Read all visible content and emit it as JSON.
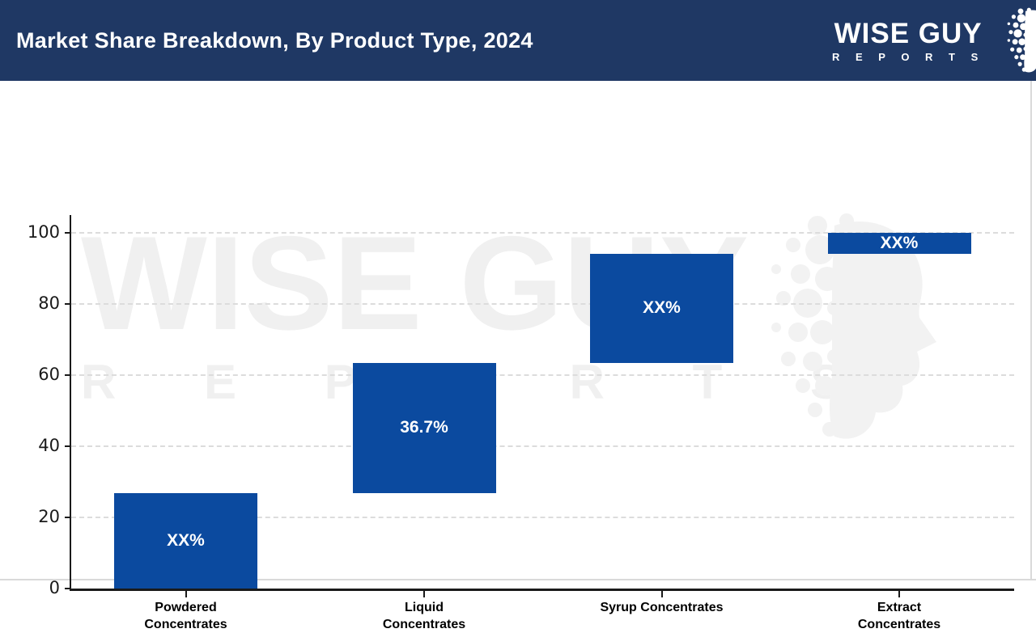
{
  "header": {
    "title": "Market Share Breakdown, By Product Type, 2024",
    "background_color": "#1f3864",
    "brand": {
      "name": "WISE GUY",
      "sub": "R E P O R T S",
      "head_icon": "wise-guy-head-logo"
    }
  },
  "watermark": {
    "line1": "WISE GUY",
    "line2": "R E P O R T S",
    "color": "#f0f0f0"
  },
  "chart_data": {
    "type": "bar",
    "subtype": "floating-waterfall",
    "title": "Market Share Breakdown, By Product Type, 2024",
    "categories": [
      "Powdered Concentrates",
      "Liquid Concentrates",
      "Syrup Concentrates",
      "Extract Concentrates"
    ],
    "category_label_lines": [
      [
        "Powdered",
        "Concentrates"
      ],
      [
        "Liquid",
        "Concentrates"
      ],
      [
        "Syrup Concentrates"
      ],
      [
        "Extract",
        "Concentrates"
      ]
    ],
    "segments": [
      {
        "category": "Powdered Concentrates",
        "start": 0,
        "end": 26.8,
        "size": 26.8,
        "label": "XX%"
      },
      {
        "category": "Liquid Concentrates",
        "start": 26.8,
        "end": 63.5,
        "size": 36.7,
        "label": "36.7%"
      },
      {
        "category": "Syrup Concentrates",
        "start": 63.5,
        "end": 94.2,
        "size": 30.7,
        "label": "XX%"
      },
      {
        "category": "Extract Concentrates",
        "start": 94.2,
        "end": 100,
        "size": 5.8,
        "label": "XX%"
      }
    ],
    "xlabel": "",
    "ylabel": "",
    "ylim": [
      0,
      100
    ],
    "yticks": [
      0,
      20,
      40,
      60,
      80,
      100
    ],
    "grid": "horizontal-dashed",
    "legend": "none",
    "bar_color": "#0b4a9f",
    "bar_label_color": "#ffffff"
  }
}
